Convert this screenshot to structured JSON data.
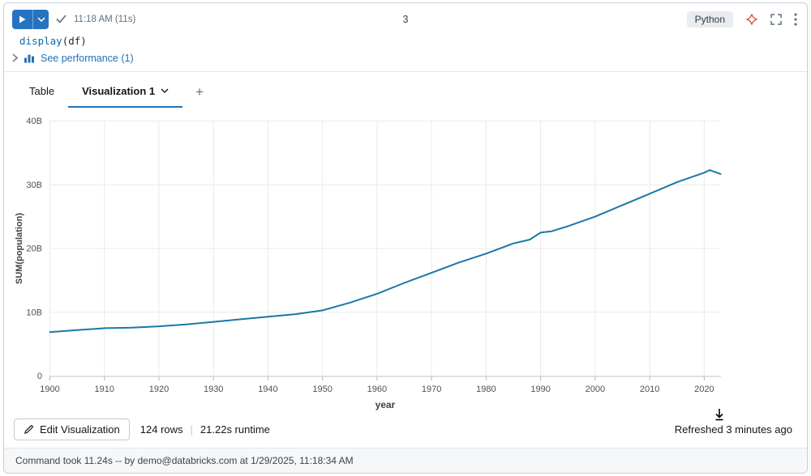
{
  "command_bar": {
    "timestamp": "11:18 AM (11s)",
    "cell_number": "3",
    "language_badge": "Python"
  },
  "code": {
    "function": "display",
    "args": "(df)"
  },
  "performance": {
    "label": "See performance (1)"
  },
  "results": {
    "tabs": [
      {
        "label": "Table",
        "active": false
      },
      {
        "label": "Visualization 1",
        "active": true
      }
    ],
    "add_tab_label": "+"
  },
  "chart_data": {
    "type": "line",
    "title": "",
    "xlabel": "year",
    "ylabel": "SUM(population)",
    "x": [
      1900,
      1905,
      1910,
      1915,
      1920,
      1925,
      1930,
      1935,
      1940,
      1945,
      1950,
      1955,
      1960,
      1965,
      1970,
      1975,
      1980,
      1985,
      1988,
      1990,
      1992,
      1995,
      2000,
      2005,
      2010,
      2015,
      2020,
      2021,
      2023
    ],
    "values": [
      6900000000.0,
      7200000000.0,
      7500000000.0,
      7600000000.0,
      7800000000.0,
      8100000000.0,
      8500000000.0,
      8900000000.0,
      9300000000.0,
      9700000000.0,
      10300000000.0,
      11500000000.0,
      12900000000.0,
      14600000000.0,
      16200000000.0,
      17800000000.0,
      19200000000.0,
      20800000000.0,
      21400000000.0,
      22500000000.0,
      22700000000.0,
      23500000000.0,
      25000000000.0,
      26800000000.0,
      28600000000.0,
      30400000000.0,
      31900000000.0,
      32300000000.0,
      31700000000.0
    ],
    "xlim": [
      1900,
      2023
    ],
    "ylim": [
      0,
      40000000000.0
    ],
    "xticks": [
      1900,
      1910,
      1920,
      1930,
      1940,
      1950,
      1960,
      1970,
      1980,
      1990,
      2000,
      2010,
      2020
    ],
    "yticks": [
      {
        "value": 0,
        "label": "0"
      },
      {
        "value": 10000000000.0,
        "label": "10B"
      },
      {
        "value": 20000000000.0,
        "label": "20B"
      },
      {
        "value": 30000000000.0,
        "label": "30B"
      },
      {
        "value": 40000000000.0,
        "label": "40B"
      }
    ],
    "line_color": "#1878a8",
    "grid": true,
    "legend": false
  },
  "toolbar": {
    "edit_button": "Edit Visualization",
    "row_count": "124 rows",
    "separator": "|",
    "runtime": "21.22s runtime",
    "refreshed": "Refreshed 3 minutes ago"
  },
  "status_bar": {
    "text": "Command took 11.24s -- by demo@databricks.com at 1/29/2025, 11:18:34 AM"
  },
  "colors": {
    "accent_blue": "#2272b4",
    "run_button_blue": "#2573c1",
    "line_color": "#1878a8",
    "assistant_orange": "#d8543f"
  }
}
